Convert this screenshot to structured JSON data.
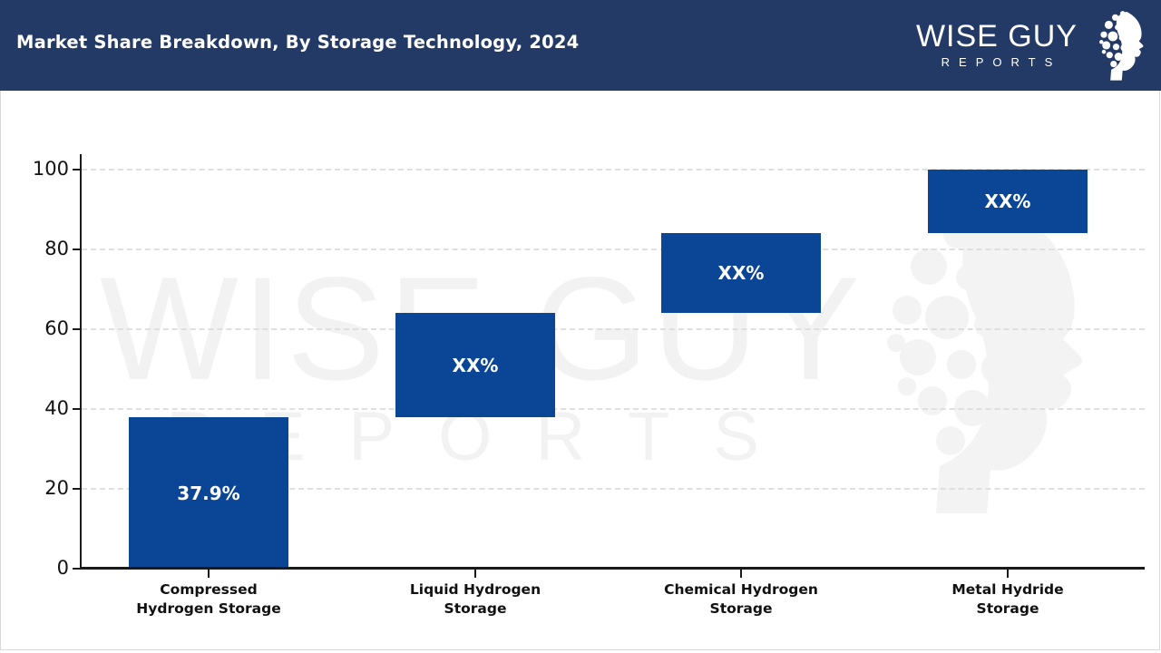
{
  "header": {
    "title": "Market Share Breakdown, By Storage Technology, 2024",
    "logo": {
      "wordmark": "WISE GUY",
      "subtext": "REPORTS",
      "head_icon": "dotted-head-profile"
    }
  },
  "watermark": {
    "wordmark": "WISE GUY",
    "subtext": "REPORTS",
    "head_icon": "dotted-head-profile"
  },
  "chart_data": {
    "type": "bar",
    "subtype": "waterfall",
    "title": "Market Share Breakdown, By Storage Technology, 2024",
    "categories": [
      "Compressed Hydrogen Storage",
      "Liquid Hydrogen Storage",
      "Chemical Hydrogen Storage",
      "Metal Hydride Storage"
    ],
    "category_lines": [
      [
        "Compressed",
        "Hydrogen Storage"
      ],
      [
        "Liquid Hydrogen",
        "Storage"
      ],
      [
        "Chemical Hydrogen",
        "Storage"
      ],
      [
        "Metal Hydride",
        "Storage"
      ]
    ],
    "bars": [
      {
        "category": "Compressed Hydrogen Storage",
        "start": 0,
        "end": 37.9,
        "label": "37.9%"
      },
      {
        "category": "Liquid Hydrogen Storage",
        "start": 37.9,
        "end": 64.1,
        "label": "XX%"
      },
      {
        "category": "Chemical Hydrogen Storage",
        "start": 64.1,
        "end": 84.1,
        "label": "XX%"
      },
      {
        "category": "Metal Hydride Storage",
        "start": 84.1,
        "end": 100,
        "label": "XX%"
      }
    ],
    "ylim": [
      0,
      100
    ],
    "yticks": [
      0,
      20,
      40,
      60,
      80,
      100
    ],
    "xlabel": "",
    "ylabel": "",
    "grid": "horizontal-dashed",
    "legend": "none",
    "bar_color": "#0A4596"
  },
  "colors": {
    "header_bg": "#233A66",
    "bar": "#0A4596",
    "bar_label": "#FFFFFF",
    "axis": "#1A1A1A",
    "gridline": "#DFDFDF",
    "watermark": "#F2F2F2",
    "frame_line": "#D9D9D9",
    "background": "#FFFFFF"
  }
}
